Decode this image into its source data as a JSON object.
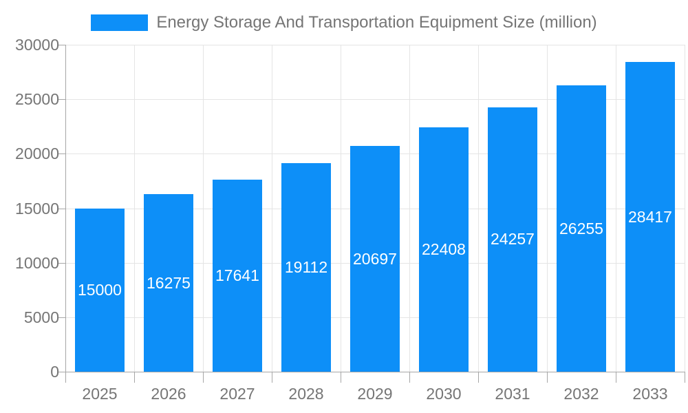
{
  "legend": {
    "label": "Energy Storage And Transportation Equipment Size (million)"
  },
  "chart_data": {
    "type": "bar",
    "title": "Energy Storage And Transportation Equipment Size (million)",
    "categories": [
      "2025",
      "2026",
      "2027",
      "2028",
      "2029",
      "2030",
      "2031",
      "2032",
      "2033"
    ],
    "values": [
      15000,
      16275,
      17641,
      19112,
      20697,
      22408,
      24257,
      26255,
      28417
    ],
    "series": [
      {
        "name": "Energy Storage And Transportation Equipment Size (million)",
        "values": [
          15000,
          16275,
          17641,
          19112,
          20697,
          22408,
          24257,
          26255,
          28417
        ]
      }
    ],
    "xlabel": "",
    "ylabel": "",
    "ylim": [
      0,
      30000
    ],
    "y_ticks": [
      0,
      5000,
      10000,
      15000,
      20000,
      25000,
      30000
    ],
    "grid": true,
    "legend_position": "top-center",
    "data_labels": "inside-center",
    "colors": {
      "bar": "#0D8FF8",
      "bar_label_text": "#FFFFFF",
      "axis_text": "#757575",
      "gridline": "#E4E4E4",
      "axis_line": "#A6A6A6"
    }
  }
}
